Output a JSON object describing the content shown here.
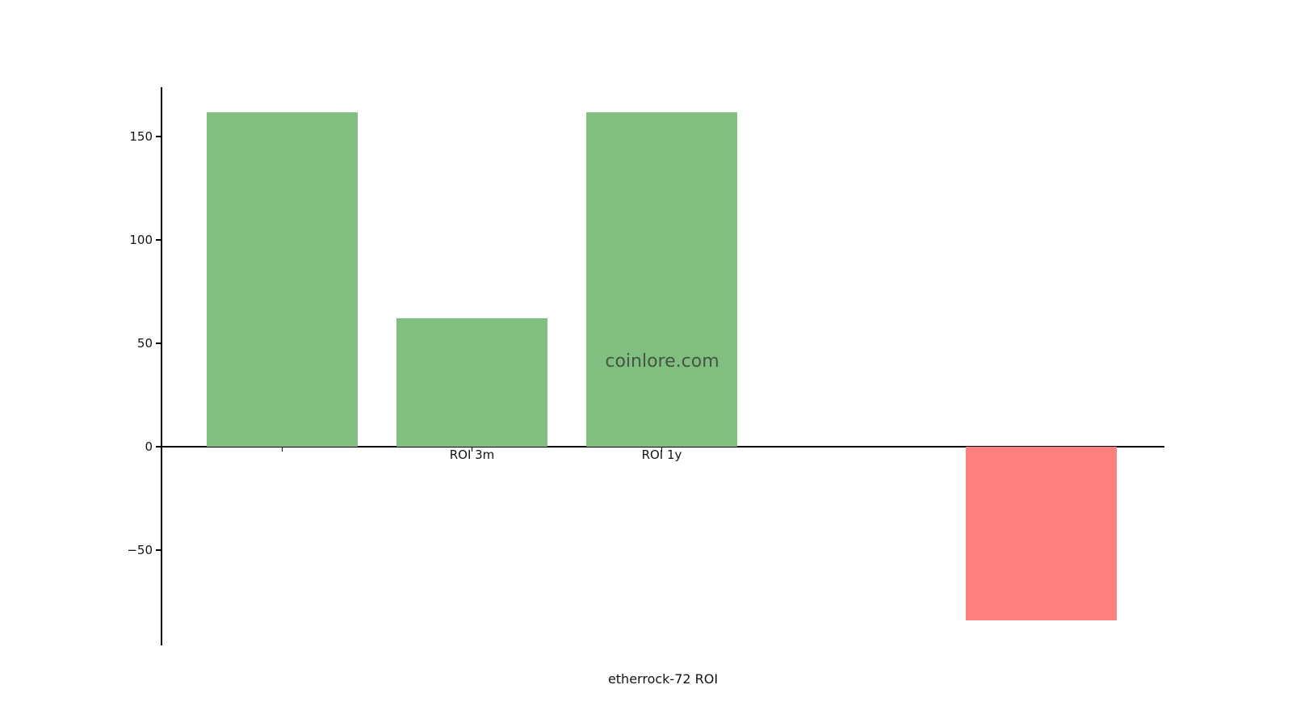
{
  "page": {
    "background_color": "#ffffff"
  },
  "chart_data": {
    "type": "bar",
    "title": "",
    "xlabel": "etherrock-72 ROI",
    "ylabel": "",
    "watermark": "coinlore.com",
    "categories": [
      "",
      "ROI 3m",
      "ROI 1y",
      "",
      ""
    ],
    "values": [
      161.5,
      62,
      161.5,
      null,
      -84
    ],
    "bar_colors": [
      "#80bf80",
      "#80bf80",
      "#80bf80",
      null,
      "#ff7f7f"
    ],
    "positive_color": "#80bf80",
    "negative_color": "#ff7f7f",
    "ylim": [
      -96.1,
      173.8
    ],
    "yticks": [
      150,
      100,
      50,
      0,
      -50
    ],
    "ytick_labels": [
      "150",
      "100",
      "50",
      "0",
      "−50"
    ],
    "xticks_shown": [
      true,
      true,
      true,
      false,
      false
    ],
    "grid": false,
    "legend": null,
    "axis_color": "#000000",
    "text_color": "#141414"
  }
}
